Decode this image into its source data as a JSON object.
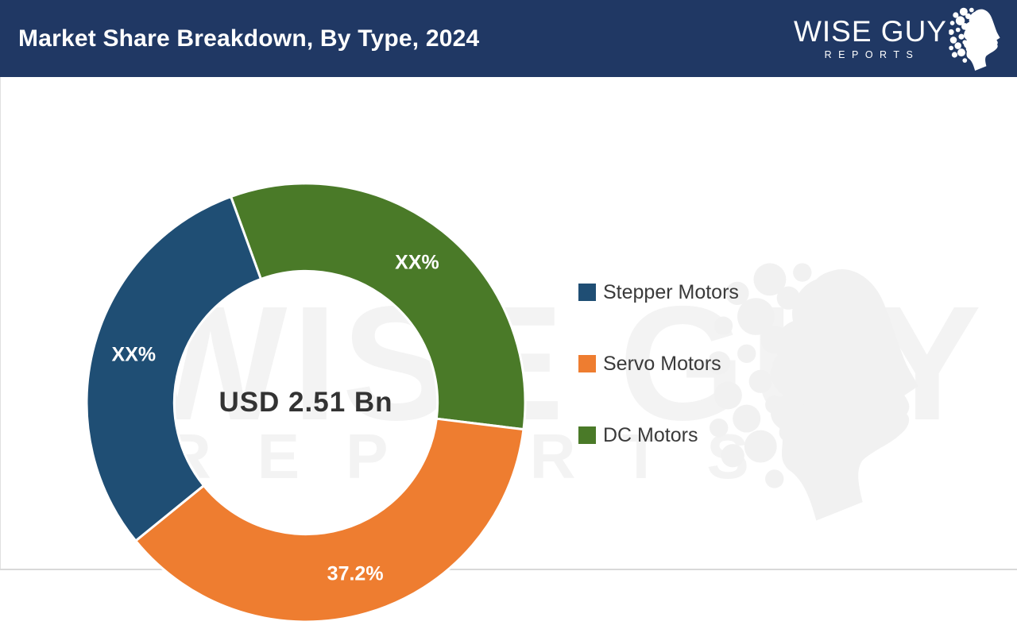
{
  "header": {
    "title": "Market Share Breakdown, By Type, 2024",
    "background_color": "#203864",
    "logo": {
      "line1": "WISE GUY",
      "line2": "REPORTS"
    }
  },
  "watermark": {
    "line1": "WISE GUY",
    "line2": "REPORTS"
  },
  "chart_data": {
    "type": "pie",
    "subtype": "donut",
    "title": "Market Share Breakdown, By Type, 2024",
    "center_label": "USD 2.51 Bn",
    "start_angle_deg": -20,
    "direction": "clockwise",
    "inner_radius_ratio": 0.6,
    "legend_position": "right",
    "segments": [
      {
        "name": "DC Motors",
        "value": 32.5,
        "display_label": "XX%",
        "color": "#4a7a28"
      },
      {
        "name": "Servo Motors",
        "value": 37.2,
        "display_label": "37.2%",
        "color": "#ee7d30"
      },
      {
        "name": "Stepper Motors",
        "value": 30.3,
        "display_label": "XX%",
        "color": "#1f4e74"
      }
    ],
    "legend": [
      {
        "label": "Stepper Motors",
        "color": "#1f4e74"
      },
      {
        "label": "Servo Motors",
        "color": "#ee7d30"
      },
      {
        "label": "DC Motors",
        "color": "#4a7a28"
      }
    ]
  }
}
